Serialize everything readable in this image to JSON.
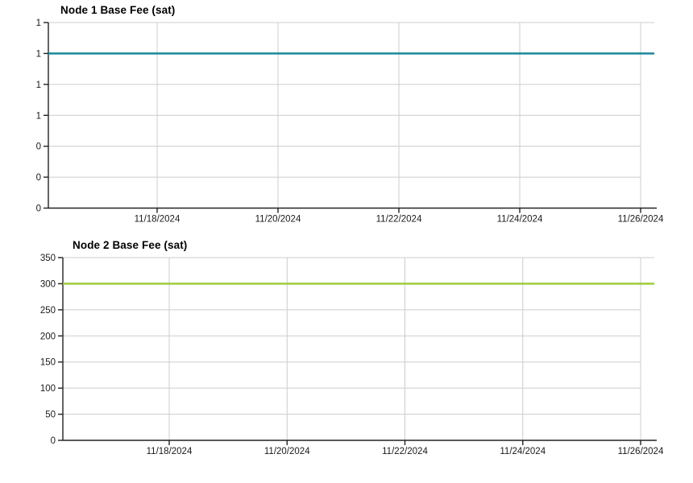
{
  "page": {
    "background": "#ffffff"
  },
  "colors": {
    "grid": "#cccccc",
    "axis": "#222222",
    "tick_text": "#1a1a1a",
    "title_text": "#000000",
    "node1_line": "#18879a",
    "node2_line": "#9ccb3b"
  },
  "chart_data": [
    {
      "type": "line",
      "title": "Node 1 Base Fee (sat)",
      "xlabel": "",
      "ylabel": "",
      "ylim": [
        0,
        1.2
      ],
      "grid": true,
      "legend_position": "none",
      "y_ticks": {
        "values": [
          1.2,
          1.0,
          0.8,
          0.6,
          0.4,
          0.2,
          0
        ],
        "labels": [
          "1",
          "1",
          "1",
          "1",
          "0",
          "0",
          "0"
        ]
      },
      "x_ticks": {
        "labels": [
          "11/18/2024",
          "11/20/2024",
          "11/22/2024",
          "11/24/2024",
          "11/26/2024"
        ]
      },
      "series": [
        {
          "name": "Node 1 Base Fee (sat)",
          "shape": "constant-horizontal-line",
          "value": 1,
          "color": "#18879a"
        }
      ]
    },
    {
      "type": "line",
      "title": "Node 2 Base Fee (sat)",
      "xlabel": "",
      "ylabel": "",
      "ylim": [
        0,
        350
      ],
      "grid": true,
      "legend_position": "none",
      "y_ticks": {
        "values": [
          350,
          300,
          250,
          200,
          150,
          100,
          50,
          0
        ],
        "labels": [
          "350",
          "300",
          "250",
          "200",
          "150",
          "100",
          "50",
          "0"
        ]
      },
      "x_ticks": {
        "labels": [
          "11/18/2024",
          "11/20/2024",
          "11/22/2024",
          "11/24/2024",
          "11/26/2024"
        ]
      },
      "series": [
        {
          "name": "Node 2 Base Fee (sat)",
          "shape": "constant-horizontal-line",
          "value": 300,
          "color": "#9ccb3b"
        }
      ]
    }
  ]
}
